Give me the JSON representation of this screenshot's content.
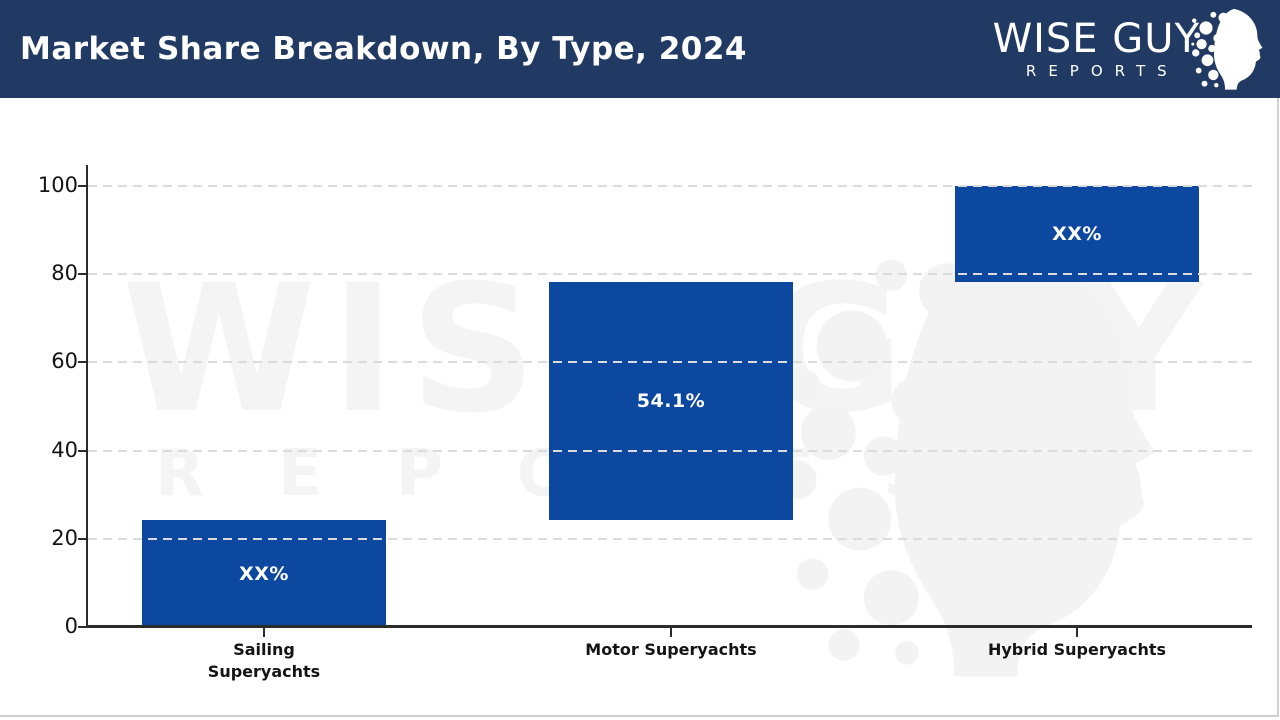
{
  "header": {
    "title": "Market Share Breakdown, By Type, 2024",
    "logo": {
      "name": "WISE GUY",
      "sub": "REPORTS"
    }
  },
  "watermark": {
    "name": "WISE GUY",
    "sub": "REPORTS"
  },
  "chart_data": {
    "type": "bar",
    "subtype": "floating-segment-bars (waterfall-style market share)",
    "title": "Market Share Breakdown, By Type, 2024",
    "categories": [
      "Sailing\nSuperyachts",
      "Motor Superyachts",
      "Hybrid Superyachts"
    ],
    "series": [
      {
        "name": "Market share segment",
        "segment_start": [
          0,
          24.2,
          78.3
        ],
        "segment_end": [
          24.2,
          78.3,
          100
        ],
        "values_estimated_from_axis": [
          24.2,
          54.1,
          21.7
        ]
      }
    ],
    "bar_labels": [
      "XX%",
      "54.1%",
      "XX%"
    ],
    "xlabel": "",
    "ylabel": "",
    "ylim": [
      0,
      100
    ],
    "yticks": [
      0,
      20,
      40,
      60,
      80,
      100
    ],
    "grid": "horizontal dashed, drawn above bars",
    "legend": "none",
    "bar_color": "#0C47A0",
    "bar_label_color": "#ffffff",
    "grid_color": "#dbdbdb",
    "axis_color": "#2b2b2b",
    "header_color": "#213A64",
    "watermark_color": "#f4f4f4"
  }
}
